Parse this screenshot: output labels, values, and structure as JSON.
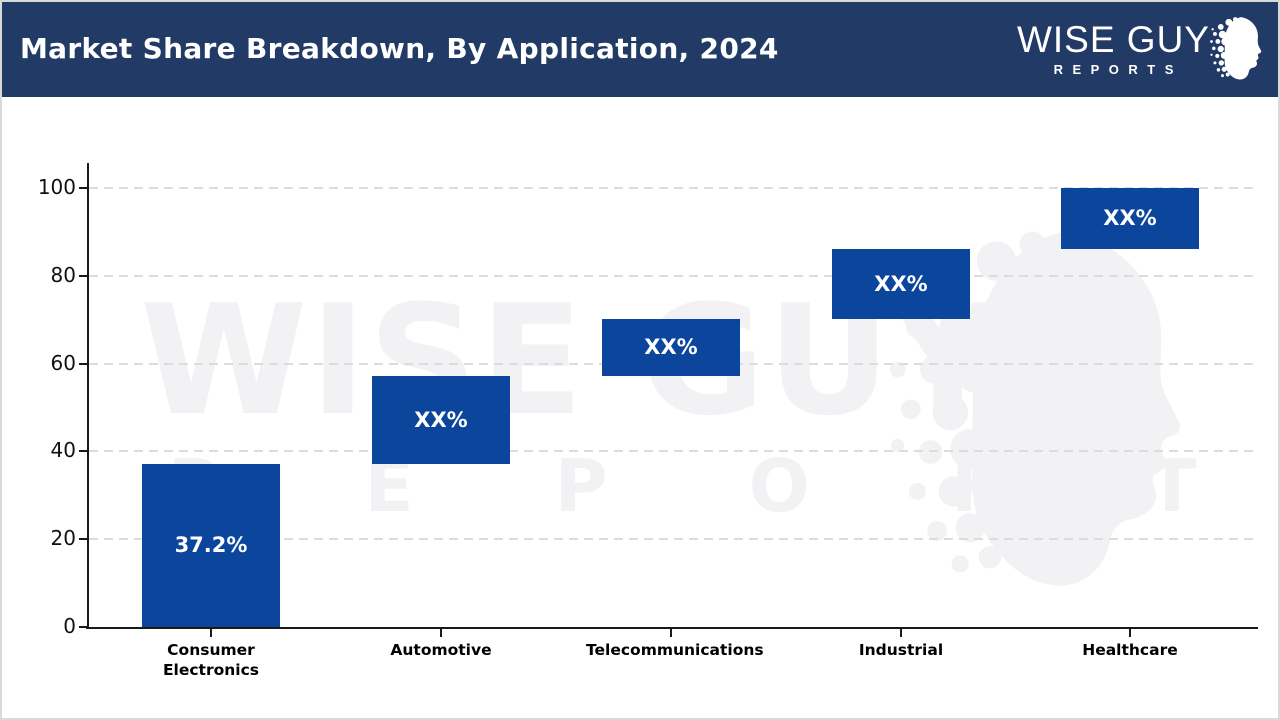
{
  "header": {
    "title": "Market Share Breakdown, By Application, 2024",
    "logo": {
      "line1": "WISE GUY",
      "line2": "REPORTS",
      "icon": "wiseguy-face-icon"
    }
  },
  "watermark": {
    "line1": "WISE GUY",
    "line2": "REPORTS",
    "icon": "wiseguy-face-icon"
  },
  "chart_data": {
    "type": "bar",
    "subtype": "waterfall-stacked-progression",
    "title": "Market Share Breakdown, By Application, 2024",
    "categories": [
      "Consumer Electronics",
      "Automotive",
      "Telecommunications",
      "Industrial",
      "Healthcare"
    ],
    "values": [
      37.2,
      20.0,
      13.0,
      16.0,
      13.8
    ],
    "segment_ranges": [
      [
        0,
        37.2
      ],
      [
        37.2,
        57.2
      ],
      [
        57.2,
        70.2
      ],
      [
        70.2,
        86.2
      ],
      [
        86.2,
        100
      ]
    ],
    "bar_labels": [
      "37.2%",
      "XX%",
      "XX%",
      "XX%",
      "XX%"
    ],
    "xlabel": "",
    "ylabel": "",
    "ylim": [
      0,
      100
    ],
    "yticks": [
      0,
      20,
      40,
      60,
      80,
      100
    ],
    "grid": "horizontal-dashed",
    "legend": "none",
    "bar_color": "#0b459c",
    "bar_label_color": "#ffffff",
    "grid_color": "#dcdcdc",
    "axis_color": "#1a1a1a"
  },
  "colors": {
    "header_bg": "#223b66",
    "page_bg": "#ffffff",
    "watermark": "#f2f2f4",
    "frame_border": "#d9d9d9"
  }
}
